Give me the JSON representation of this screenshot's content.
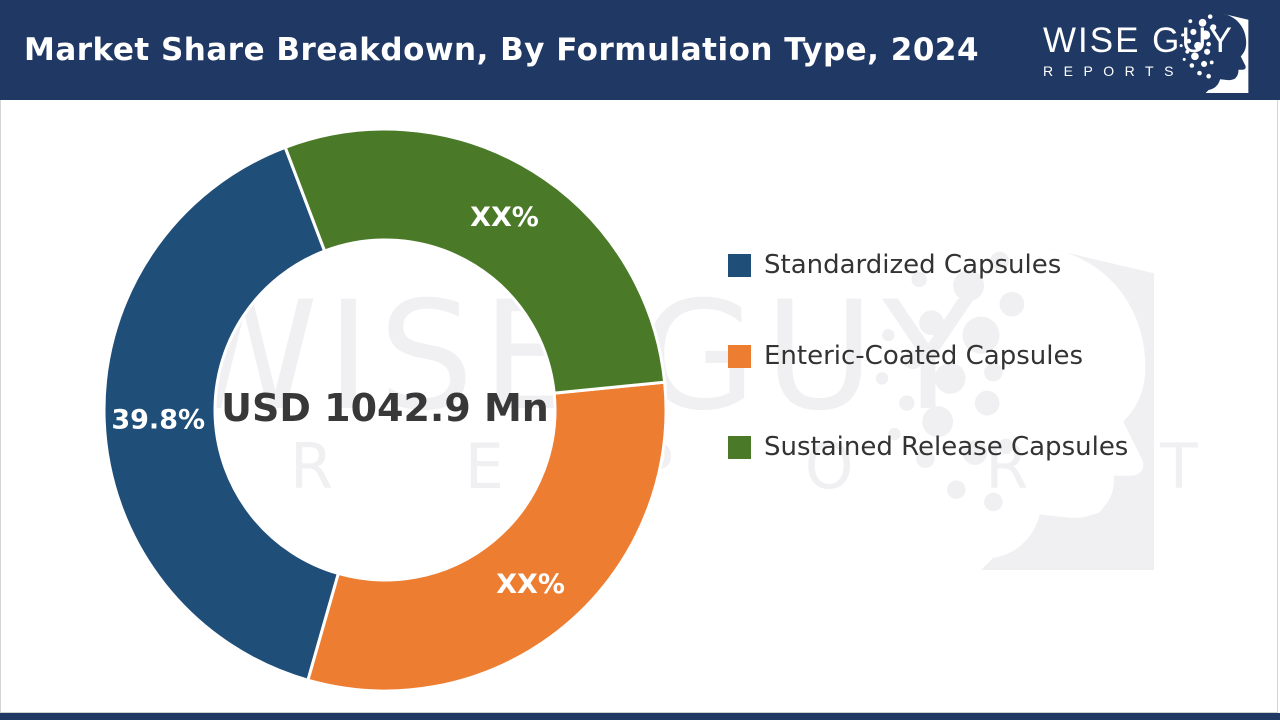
{
  "header": {
    "title": "Market Share Breakdown, By Formulation Type, 2024",
    "background": "#203864",
    "logo": {
      "line1": "WISE GUY",
      "line2": "REPORTS"
    }
  },
  "chart_data": {
    "type": "pie",
    "donut": true,
    "center_label": "USD 1042.9 Mn",
    "rotation_deg": 110.8,
    "direction": "ccw",
    "legend_position": "right",
    "segments": [
      {
        "name": "Standardized Capsules",
        "value_pct": 39.8,
        "label": "39.8%",
        "color": "#1F4E79"
      },
      {
        "name": "Enteric-Coated Capsules",
        "value_pct": 31.0,
        "label": "XX%",
        "color": "#ED7D31"
      },
      {
        "name": "Sustained Release Capsules",
        "value_pct": 29.2,
        "label": "XX%",
        "color": "#4A7A28"
      }
    ]
  },
  "watermark": {
    "line1": "WISE GUY",
    "line2": "R E P O R T S",
    "color": "#f0f0f2"
  }
}
